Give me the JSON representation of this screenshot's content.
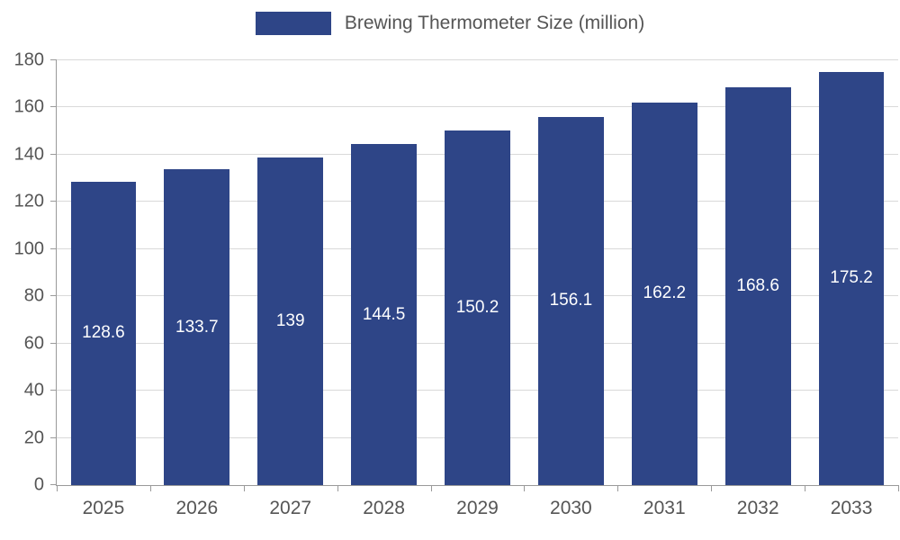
{
  "legend": {
    "label": "Brewing Thermometer Size (million)",
    "swatch_color": "#2E4587"
  },
  "chart_data": {
    "type": "bar",
    "title": "Brewing Thermometer Size (million)",
    "categories": [
      "2025",
      "2026",
      "2027",
      "2028",
      "2029",
      "2030",
      "2031",
      "2032",
      "2033"
    ],
    "values": [
      128.6,
      133.7,
      139,
      144.5,
      150.2,
      156.1,
      162.2,
      168.6,
      175.2
    ],
    "bar_labels": [
      "128.6",
      "133.7",
      "139",
      "144.5",
      "150.2",
      "156.1",
      "162.2",
      "168.6",
      "175.2"
    ],
    "xlabel": "",
    "ylabel": "",
    "ylim": [
      0,
      180
    ],
    "yticks": [
      0,
      20,
      40,
      60,
      80,
      100,
      120,
      140,
      160,
      180
    ],
    "grid": true,
    "legend_position": "top",
    "bar_color": "#2E4587",
    "value_label_color": "#ffffff",
    "axis_text_color": "#555555"
  }
}
